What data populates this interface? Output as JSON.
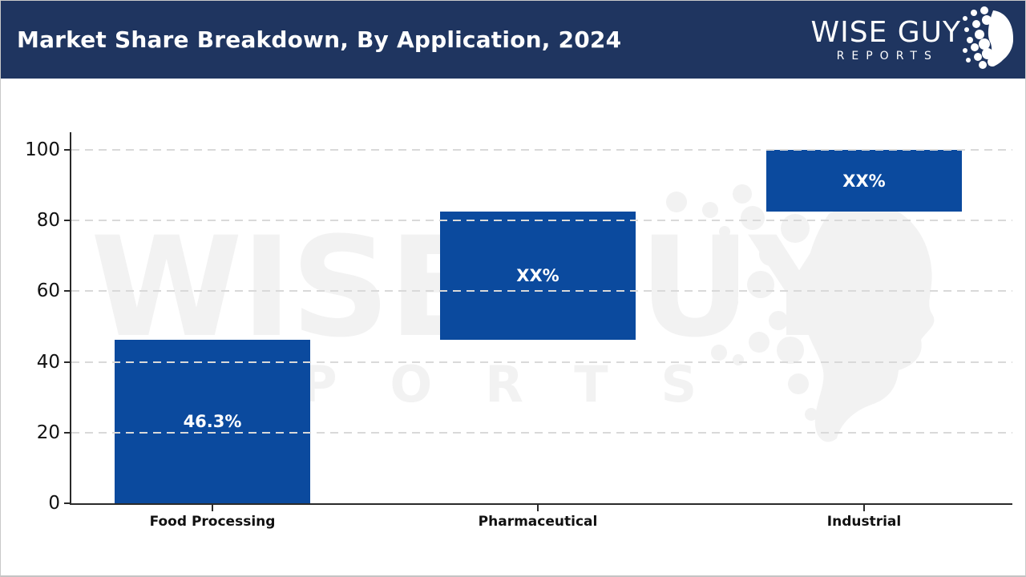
{
  "header": {
    "title": "Market Share Breakdown, By Application, 2024",
    "brand_line1": "WISE GUY",
    "brand_line2": "REPORTS"
  },
  "watermark": {
    "line1": "WISE GUY",
    "line2": "REPORTS"
  },
  "colors": {
    "header_bg": "#1f3560",
    "bar": "#0b4a9e",
    "watermark": "#f2f2f2",
    "grid": "#d9d9d9",
    "axis": "#2a2a2a"
  },
  "chart_data": {
    "type": "bar",
    "subtype": "floating-waterfall",
    "title": "Market Share Breakdown, By Application, 2024",
    "categories": [
      "Food Processing",
      "Pharmaceutical",
      "Industrial"
    ],
    "bars": [
      {
        "category": "Food Processing",
        "base": 0,
        "top": 46.3,
        "label": "46.3%"
      },
      {
        "category": "Pharmaceutical",
        "base": 46.3,
        "top": 82.5,
        "label": "XX%"
      },
      {
        "category": "Industrial",
        "base": 82.5,
        "top": 100,
        "label": "XX%"
      }
    ],
    "xlabel": "",
    "ylabel": "",
    "ylim": [
      0,
      105
    ],
    "yticks": [
      0,
      20,
      40,
      60,
      80,
      100
    ],
    "grid": "dashed-horizontal",
    "legend": "none",
    "bar_color": "#0b4a9e",
    "value_label_color": "#ffffff"
  }
}
